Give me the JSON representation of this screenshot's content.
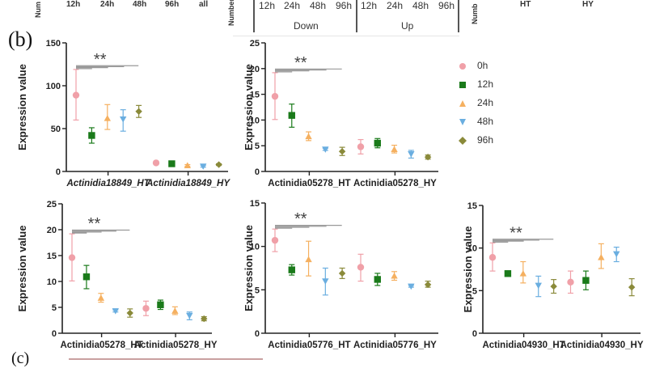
{
  "top_strip": {
    "left_axis_label": "Num",
    "left_times": [
      "12h",
      "24h",
      "48h",
      "96h",
      "all"
    ],
    "mid_axis_label": "Number",
    "down_times": [
      "12h",
      "24h",
      "48h",
      "96h"
    ],
    "up_times": [
      "12h",
      "24h",
      "48h",
      "96h"
    ],
    "down_label": "Down",
    "up_label": "Up",
    "right_axis_label": "Numb",
    "right_groups": [
      "HT",
      "HY"
    ]
  },
  "panel_label": "(b)",
  "next_panel_label": "(c)",
  "bottom_strip_labels": [
    "Actinidia05278_HT",
    "Actinidia05278_HY",
    "Actinidia05776_HT",
    "Actinidia05776_HY",
    "Actinidia04930_HT",
    "Actinidia04930_HY"
  ],
  "legend": {
    "items": [
      {
        "label": "0h",
        "color": "#f0a0a8",
        "marker": "circle"
      },
      {
        "label": "12h",
        "color": "#1a7a1a",
        "marker": "square"
      },
      {
        "label": "24h",
        "color": "#f5b060",
        "marker": "triangle-up"
      },
      {
        "label": "48h",
        "color": "#6aaee0",
        "marker": "triangle-down"
      },
      {
        "label": "96h",
        "color": "#8a8a3a",
        "marker": "diamond"
      }
    ]
  },
  "chart_data": [
    {
      "type": "scatter",
      "title": "",
      "ylabel": "Expression value",
      "ylim": [
        0,
        150
      ],
      "yticks": [
        0,
        50,
        100,
        150
      ],
      "categories": [
        "Actinidia18849_HT",
        "Actinidia18849_HY"
      ],
      "italic_categories": true,
      "significance": "**",
      "series": [
        {
          "name": "0h",
          "values": [
            89,
            10
          ],
          "err_low": [
            60,
            9
          ],
          "err_high": [
            119,
            11
          ]
        },
        {
          "name": "12h",
          "values": [
            42,
            9
          ],
          "err_low": [
            33,
            8
          ],
          "err_high": [
            51,
            10
          ]
        },
        {
          "name": "24h",
          "values": [
            62,
            7
          ],
          "err_low": [
            49,
            6
          ],
          "err_high": [
            78,
            8
          ]
        },
        {
          "name": "48h",
          "values": [
            61,
            6
          ],
          "err_low": [
            47,
            5
          ],
          "err_high": [
            72,
            7
          ]
        },
        {
          "name": "96h",
          "values": [
            70,
            8
          ],
          "err_low": [
            63,
            7
          ],
          "err_high": [
            77,
            9
          ]
        }
      ]
    },
    {
      "type": "scatter",
      "title": "",
      "ylabel": "Expression value",
      "ylim": [
        0,
        25
      ],
      "yticks": [
        0,
        5,
        10,
        15,
        20,
        25
      ],
      "categories": [
        "Actinidia05278_HT",
        "Actinidia05278_HY"
      ],
      "italic_categories": false,
      "significance": "**",
      "series": [
        {
          "name": "0h",
          "values": [
            14.6,
            4.8
          ],
          "err_low": [
            10.1,
            3.4
          ],
          "err_high": [
            19.2,
            6.2
          ]
        },
        {
          "name": "12h",
          "values": [
            10.9,
            5.5
          ],
          "err_low": [
            8.6,
            4.6
          ],
          "err_high": [
            13.1,
            6.4
          ]
        },
        {
          "name": "24h",
          "values": [
            6.8,
            4.3
          ],
          "err_low": [
            6.0,
            3.6
          ],
          "err_high": [
            7.7,
            5.1
          ]
        },
        {
          "name": "48h",
          "values": [
            4.3,
            3.4
          ],
          "err_low": [
            4.1,
            2.6
          ],
          "err_high": [
            4.5,
            4.1
          ]
        },
        {
          "name": "96h",
          "values": [
            3.9,
            2.8
          ],
          "err_low": [
            3.1,
            2.4
          ],
          "err_high": [
            4.7,
            3.2
          ]
        }
      ]
    },
    {
      "type": "scatter",
      "title": "",
      "ylabel": "Expression value",
      "ylim": [
        0,
        25
      ],
      "yticks": [
        0,
        5,
        10,
        15,
        20,
        25
      ],
      "categories": [
        "Actinidia05278_HT",
        "Actinidia05278_HY"
      ],
      "italic_categories": false,
      "significance": "**",
      "series": [
        {
          "name": "0h",
          "values": [
            14.6,
            4.8
          ],
          "err_low": [
            10.1,
            3.4
          ],
          "err_high": [
            19.2,
            6.2
          ]
        },
        {
          "name": "12h",
          "values": [
            10.9,
            5.5
          ],
          "err_low": [
            8.6,
            4.6
          ],
          "err_high": [
            13.1,
            6.4
          ]
        },
        {
          "name": "24h",
          "values": [
            6.8,
            4.3
          ],
          "err_low": [
            6.0,
            3.6
          ],
          "err_high": [
            7.7,
            5.1
          ]
        },
        {
          "name": "48h",
          "values": [
            4.3,
            3.4
          ],
          "err_low": [
            4.1,
            2.6
          ],
          "err_high": [
            4.5,
            4.1
          ]
        },
        {
          "name": "96h",
          "values": [
            3.9,
            2.8
          ],
          "err_low": [
            3.1,
            2.4
          ],
          "err_high": [
            4.7,
            3.2
          ]
        }
      ]
    },
    {
      "type": "scatter",
      "title": "",
      "ylabel": "Expression value",
      "ylim": [
        0,
        15
      ],
      "yticks": [
        0,
        5,
        10,
        15
      ],
      "categories": [
        "Actinidia05776_HT",
        "Actinidia05776_HY"
      ],
      "italic_categories": false,
      "significance": "**",
      "series": [
        {
          "name": "0h",
          "values": [
            10.7,
            7.6
          ],
          "err_low": [
            9.4,
            6.0
          ],
          "err_high": [
            12.0,
            9.1
          ]
        },
        {
          "name": "12h",
          "values": [
            7.3,
            6.2
          ],
          "err_low": [
            6.7,
            5.5
          ],
          "err_high": [
            7.9,
            6.9
          ]
        },
        {
          "name": "24h",
          "values": [
            8.5,
            6.6
          ],
          "err_low": [
            6.6,
            6.1
          ],
          "err_high": [
            10.6,
            7.1
          ]
        },
        {
          "name": "48h",
          "values": [
            6.0,
            5.4
          ],
          "err_low": [
            4.4,
            5.3
          ],
          "err_high": [
            7.5,
            5.5
          ]
        },
        {
          "name": "96h",
          "values": [
            6.9,
            5.6
          ],
          "err_low": [
            6.3,
            5.3
          ],
          "err_high": [
            7.5,
            6.0
          ]
        }
      ]
    },
    {
      "type": "scatter",
      "title": "",
      "ylabel": "Expression value",
      "ylim": [
        0,
        15
      ],
      "yticks": [
        0,
        5,
        10,
        15
      ],
      "categories": [
        "Actinidia04930_HT",
        "Actinidia04930_HY"
      ],
      "italic_categories": false,
      "significance": "**",
      "series": [
        {
          "name": "0h",
          "values": [
            8.9,
            6.0
          ],
          "err_low": [
            7.3,
            4.7
          ],
          "err_high": [
            10.6,
            7.3
          ]
        },
        {
          "name": "12h",
          "values": [
            7.0,
            6.2
          ],
          "err_low": [
            7.0,
            5.1
          ],
          "err_high": [
            7.0,
            7.3
          ]
        },
        {
          "name": "24h",
          "values": [
            7.0,
            8.9
          ],
          "err_low": [
            5.9,
            7.6
          ],
          "err_high": [
            8.4,
            10.5
          ]
        },
        {
          "name": "48h",
          "values": [
            5.6,
            9.3
          ],
          "err_low": [
            4.3,
            8.4
          ],
          "err_high": [
            6.7,
            10.1
          ]
        },
        {
          "name": "96h",
          "values": [
            5.5,
            5.4
          ],
          "err_low": [
            4.7,
            4.4
          ],
          "err_high": [
            6.3,
            6.4
          ]
        }
      ]
    }
  ]
}
